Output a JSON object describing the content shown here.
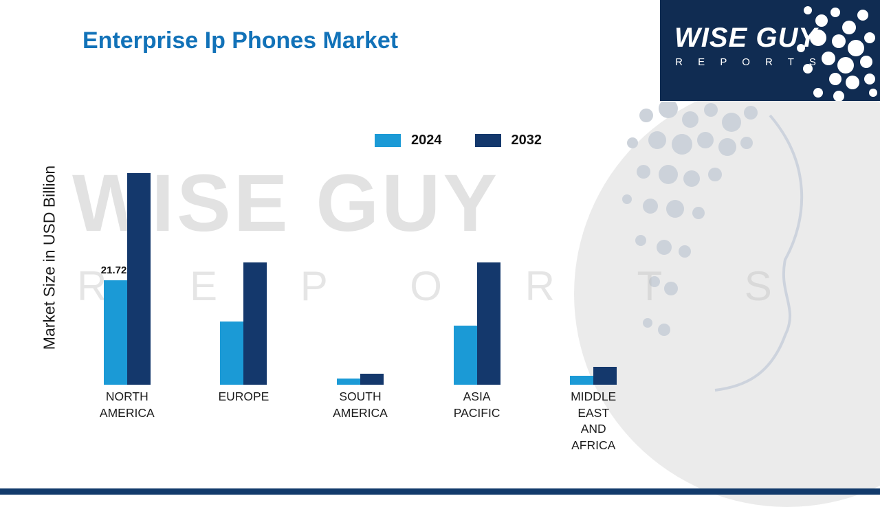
{
  "title": "Enterprise Ip Phones Market",
  "logo": {
    "line1": "WISE GUY",
    "line2": "R E P O R T S"
  },
  "watermark": {
    "line1": "WISE GUY",
    "line2": "R E P O R T S"
  },
  "colors": {
    "title_blue": "#1272b8",
    "series_2024_blue": "#1b9ad6",
    "series_2032_navy": "#14386c",
    "logo_navy": "#102c52",
    "circle_gray": "#ebebeb",
    "watermark_gray": "#d9d9d9"
  },
  "chart_data": {
    "type": "bar",
    "categories": [
      "NORTH\nAMERICA",
      "EUROPE",
      "SOUTH\nAMERICA",
      "ASIA\nPACIFIC",
      "MIDDLE\nEAST\nAND\nAFRICA"
    ],
    "series": [
      {
        "name": "2024",
        "color": "#1b9ad6",
        "values": [
          21.72,
          13.2,
          1.3,
          12.4,
          1.9
        ]
      },
      {
        "name": "2032",
        "color": "#14386c",
        "values": [
          44.1,
          25.5,
          2.3,
          25.5,
          3.7
        ]
      }
    ],
    "title": "Enterprise Ip Phones Market",
    "xlabel": "",
    "ylabel": "Market Size in USD Billion",
    "ylim": [
      0,
      46
    ],
    "grid": false,
    "legend_position": "top",
    "annotations": [
      {
        "series": "2024",
        "category": "NORTH\nAMERICA",
        "text": "21.72"
      }
    ]
  }
}
